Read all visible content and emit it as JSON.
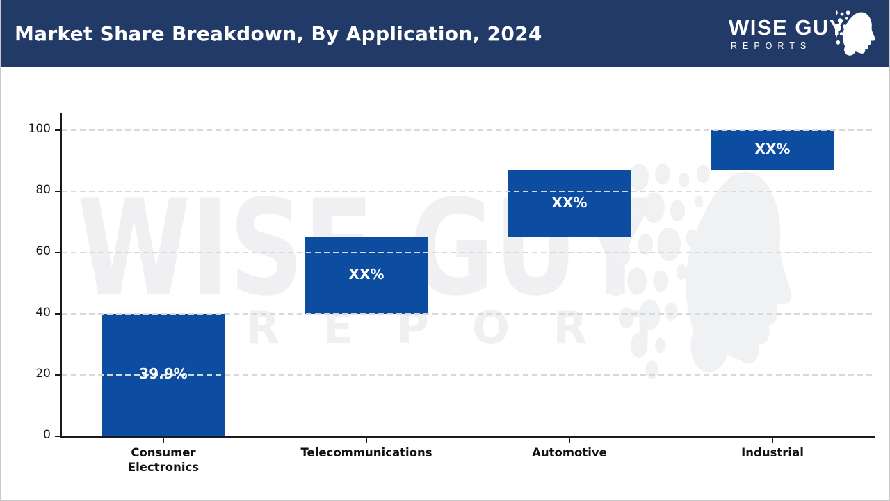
{
  "header": {
    "title": "Market Share Breakdown, By Application, 2024",
    "logo": {
      "line1": "WISE GUY",
      "line2": "REPORTS"
    }
  },
  "watermark": {
    "line1": "WISE GUY",
    "line2": "REPORTS"
  },
  "chart_data": {
    "type": "bar",
    "variant": "waterfall-floating-bars",
    "title": "Market Share Breakdown, By Application, 2024",
    "categories": [
      "Consumer\nElectronics",
      "Telecommunications",
      "Automotive",
      "Industrial"
    ],
    "segments": [
      {
        "category": "Consumer Electronics",
        "start": 0,
        "end": 39.9,
        "label": "39.9%"
      },
      {
        "category": "Telecommunications",
        "start": 39.9,
        "end": 64.9,
        "label": "XX%"
      },
      {
        "category": "Automotive",
        "start": 64.9,
        "end": 87.0,
        "label": "XX%"
      },
      {
        "category": "Industrial",
        "start": 87.0,
        "end": 100.0,
        "label": "XX%"
      }
    ],
    "ylim": [
      0,
      100
    ],
    "yticks": [
      0,
      20,
      40,
      60,
      80,
      100
    ],
    "xlabel": "",
    "ylabel": "",
    "grid": "horizontal-dashed",
    "legend": "none",
    "bar_color": "#0C4DA2",
    "bar_label_color": "#FFFFFF",
    "axis_color": "#1A1A1A",
    "gridline_color": "#D9D9D9",
    "header_color": "#213A67"
  }
}
